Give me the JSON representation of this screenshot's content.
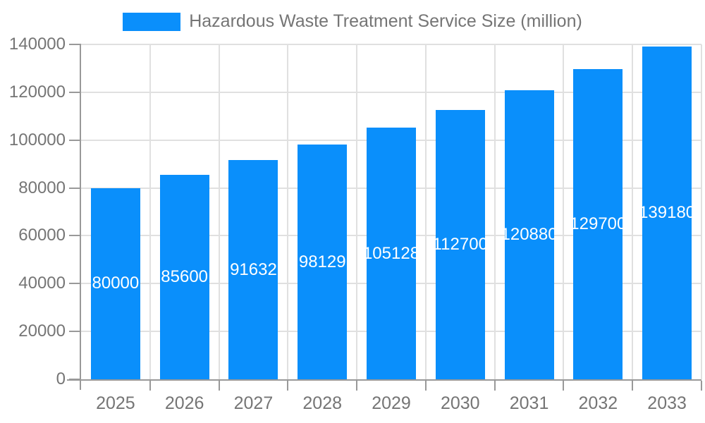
{
  "chart_data": {
    "type": "bar",
    "title": "Hazardous Waste Treatment Service Size (million)",
    "categories": [
      "2025",
      "2026",
      "2027",
      "2028",
      "2029",
      "2030",
      "2031",
      "2032",
      "2033"
    ],
    "values": [
      80000,
      85600,
      91632,
      98129,
      105128,
      112700,
      120880,
      129700,
      139180
    ],
    "bar_labels": [
      "80000",
      "85600",
      "91632",
      "98129",
      "105128",
      "112700",
      "120880",
      "129700",
      "139180"
    ],
    "y_ticks": [
      "0",
      "20000",
      "40000",
      "60000",
      "80000",
      "100000",
      "120000",
      "140000"
    ],
    "ylim": [
      0,
      140000
    ],
    "xlabel": "",
    "ylabel": "",
    "grid": true,
    "legend_position": "top-center",
    "colors": {
      "bar": "#0A8FFB",
      "bar_label": "#FFFFFF",
      "axis_line": "#999999",
      "gridline": "#E0E0E0",
      "tick_label": "#757575",
      "legend_text": "#757575",
      "background": "#FFFFFF"
    }
  }
}
